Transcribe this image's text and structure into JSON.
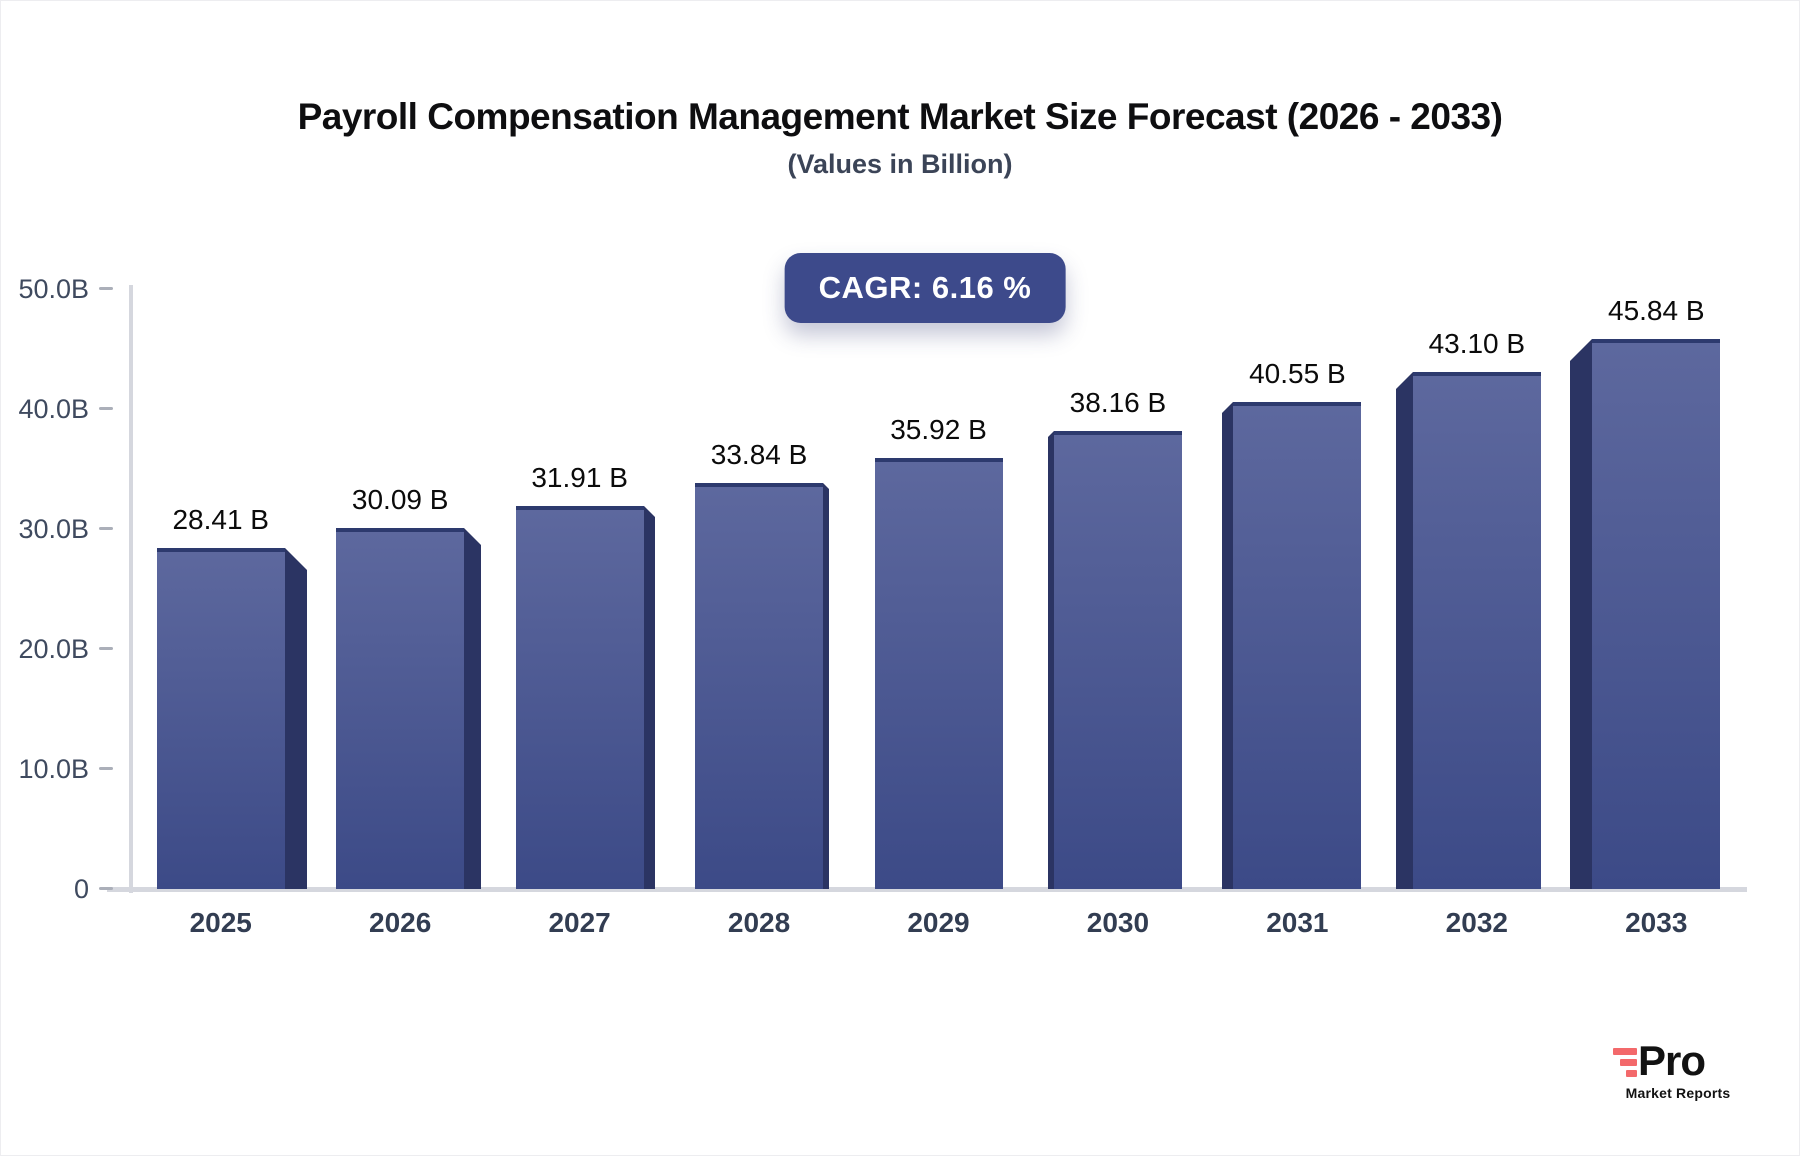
{
  "header": {
    "title": "Payroll Compensation Management Market Size Forecast (2026 - 2033)",
    "subtitle": "(Values in Billion)"
  },
  "badge": {
    "label": "CAGR: 6.16 %",
    "bg_color": "#3d4a8b",
    "text_color": "#ffffff"
  },
  "chart_data": {
    "type": "bar",
    "title": "Payroll Compensation Management Market Size Forecast (2026 - 2033)",
    "subtitle": "(Values in Billion)",
    "cagr": "6.16 %",
    "categories": [
      "2025",
      "2026",
      "2027",
      "2028",
      "2029",
      "2030",
      "2031",
      "2032",
      "2033"
    ],
    "values": [
      28.41,
      30.09,
      31.91,
      33.84,
      35.92,
      38.16,
      40.55,
      43.1,
      45.84
    ],
    "value_labels": [
      "28.41 B",
      "30.09 B",
      "31.91 B",
      "33.84 B",
      "35.92 B",
      "38.16 B",
      "40.55 B",
      "43.10 B",
      "45.84 B"
    ],
    "xlabel": "",
    "ylabel": "",
    "ylim": [
      0,
      50
    ],
    "ytick_interval": 10,
    "ytick_labels": [
      "0",
      "10.0B",
      "20.0B",
      "30.0B",
      "40.0B",
      "50.0B"
    ],
    "grid": false,
    "legend": false,
    "bar_color_top": "#5d689e",
    "bar_color_bottom": "#3c4a87",
    "bar_edge_color": "#2d3a6e",
    "bar_side_color": "#2b3463",
    "style_3d": "center-perspective extruded bars"
  },
  "footer": {
    "logo": {
      "text": "Pro",
      "subtext": "Market Reports",
      "accent_color": "#f3696b"
    }
  }
}
